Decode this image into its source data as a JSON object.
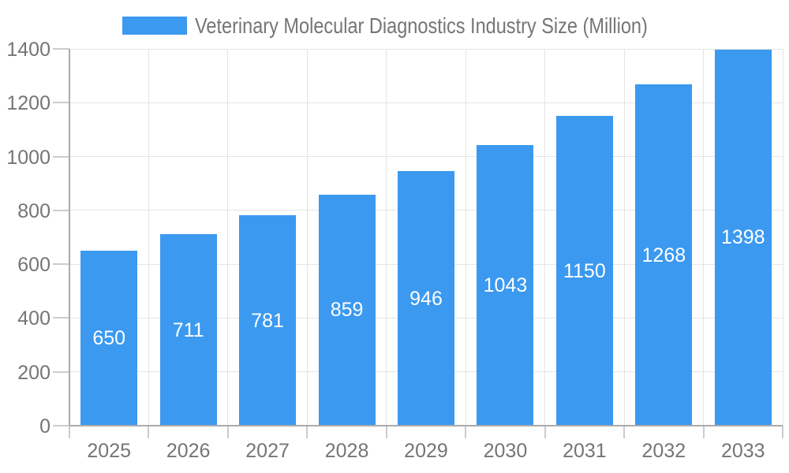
{
  "legend": {
    "label": "Veterinary Molecular Diagnostics Industry Size (Million)"
  },
  "chart_data": {
    "type": "bar",
    "title": "Veterinary Molecular Diagnostics Industry Size (Million)",
    "categories": [
      "2025",
      "2026",
      "2027",
      "2028",
      "2029",
      "2030",
      "2031",
      "2032",
      "2033"
    ],
    "values": [
      650,
      711,
      781,
      859,
      946,
      1043,
      1150,
      1268,
      1398
    ],
    "xlabel": "",
    "ylabel": "",
    "ylim": [
      0,
      1400
    ],
    "yticks": [
      0,
      200,
      400,
      600,
      800,
      1000,
      1200,
      1400
    ],
    "grid": true,
    "legend_position": "top",
    "value_label_position": "inside-center",
    "colors": {
      "bar": "#3B99F0",
      "value_label": "#FFFFFF",
      "axis_text": "#757575",
      "title_text": "#757575",
      "grid_line": "#E4E4E4",
      "axis_line": "#ABABAB",
      "tick_line": "#CCCCCC",
      "background": "#FFFFFF"
    }
  }
}
